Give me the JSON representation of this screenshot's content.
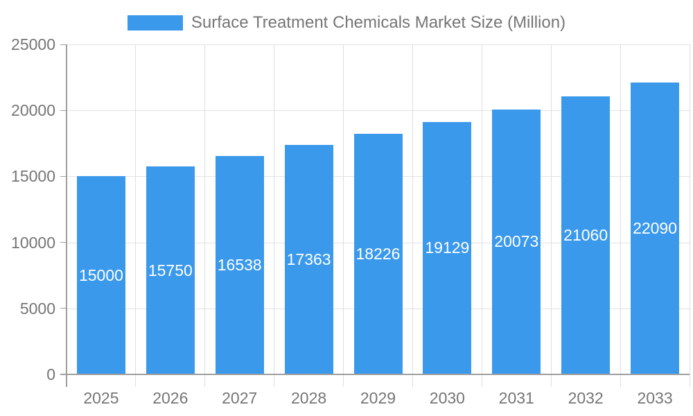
{
  "chart_data": {
    "type": "bar",
    "title": "Surface Treatment Chemicals Market Size (Million)",
    "categories": [
      "2025",
      "2026",
      "2027",
      "2028",
      "2029",
      "2030",
      "2031",
      "2032",
      "2033"
    ],
    "values": [
      15000,
      15750,
      16538,
      17363,
      18226,
      19129,
      20073,
      21060,
      22090
    ],
    "xlabel": "",
    "ylabel": "",
    "ylim": [
      0,
      25000
    ],
    "yticks": [
      0,
      5000,
      10000,
      15000,
      20000,
      25000
    ],
    "grid": true,
    "legend_position": "top",
    "colors": {
      "bar": "#3b99ec",
      "axis": "#9e9e9e",
      "gridline": "#e2e2e2",
      "tick_text": "#757575",
      "bar_label_text": "#ffffff",
      "background": "#ffffff"
    }
  }
}
